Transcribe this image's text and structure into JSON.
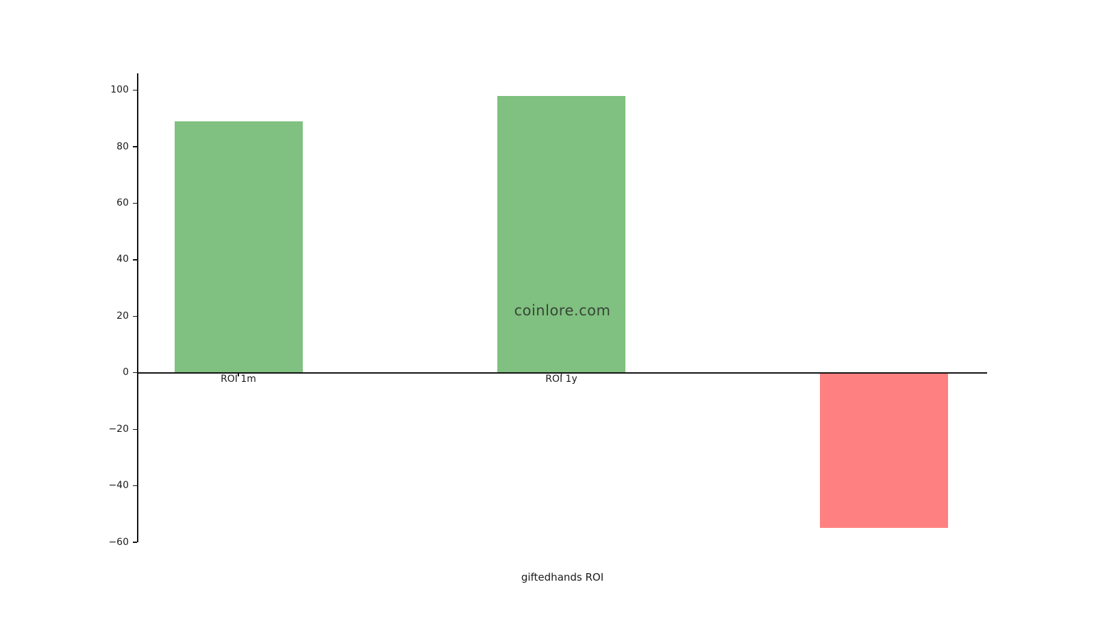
{
  "chart_data": {
    "type": "bar",
    "title": "",
    "xlabel": "giftedhands ROI",
    "ylabel": "",
    "categories": [
      "ROI 1m",
      "ROI 1y",
      ""
    ],
    "values": [
      89,
      98,
      -55
    ],
    "ylim": [
      -60,
      106
    ],
    "yticks": [
      100,
      80,
      60,
      40,
      20,
      0,
      -20,
      -40,
      -60
    ],
    "yticklabels": [
      "100",
      "80",
      "60",
      "40",
      "20",
      "0",
      "−20",
      "−40",
      "−60"
    ],
    "grid": false,
    "legend": "none",
    "positive_color": "#80c080",
    "negative_color": "#ff8080",
    "axis_color": "#111111",
    "text_color": "#1a1a1a",
    "watermark": "coinlore.com",
    "watermark_color": "#3a4a3a"
  }
}
